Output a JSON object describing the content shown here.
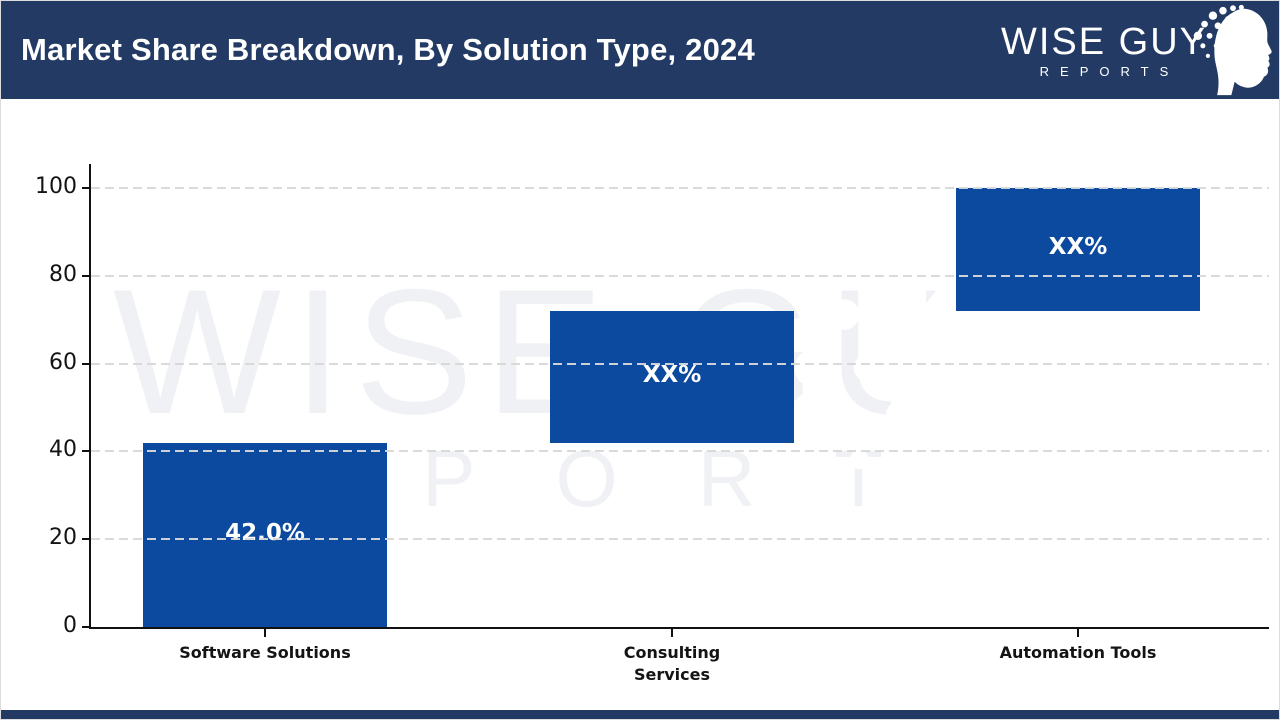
{
  "header": {
    "title": "Market Share Breakdown, By Solution Type, 2024",
    "logo": {
      "wordmark": "WISE GUY",
      "subtext": "REPORTS"
    }
  },
  "watermark": {
    "line1": "WISE GUY",
    "line2": "REPORTS"
  },
  "colors": {
    "navy": "#223A64",
    "bar_blue": "#0B4A9E",
    "grid": "#D8D8D8",
    "axis": "#111111",
    "watermark": "#F0F1F4"
  },
  "chart_data": {
    "type": "bar",
    "subtype": "waterfall",
    "title": "Market Share Breakdown, By Solution Type, 2024",
    "xlabel": "",
    "ylabel": "",
    "ylim": [
      0,
      100
    ],
    "yticks": [
      0,
      20,
      40,
      60,
      80,
      100
    ],
    "grid": "horizontal dashed, drawn above bars",
    "legend": "none",
    "categories": [
      "Software Solutions",
      "Consulting Services",
      "Automation Tools"
    ],
    "category_label_lines": [
      [
        "Software Solutions"
      ],
      [
        "Consulting",
        "Services"
      ],
      [
        "Automation Tools"
      ]
    ],
    "segments": [
      {
        "category": "Software Solutions",
        "start": 0,
        "end": 42,
        "label": "42.0%"
      },
      {
        "category": "Consulting Services",
        "start": 42,
        "end": 72,
        "label": "XX%"
      },
      {
        "category": "Automation Tools",
        "start": 72,
        "end": 100,
        "label": "XX%"
      }
    ]
  }
}
